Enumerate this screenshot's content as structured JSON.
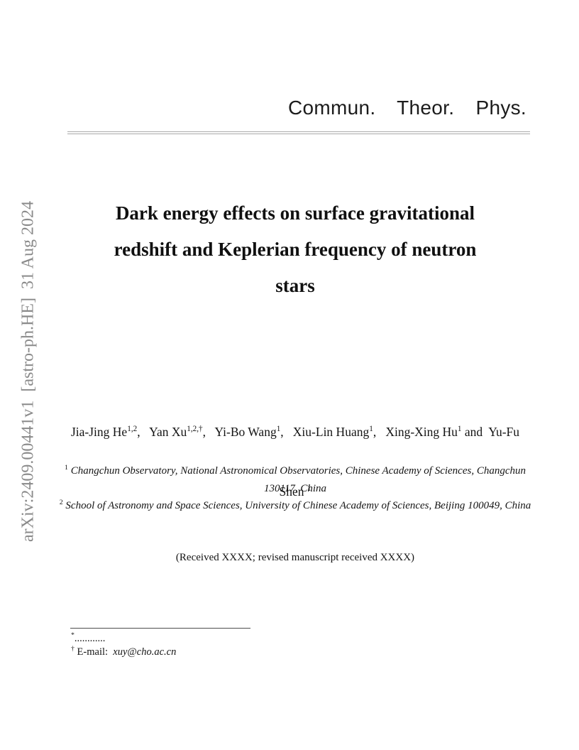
{
  "header": {
    "journal": "Commun.  Theor.  Phys."
  },
  "arxiv_stamp": {
    "text": "arXiv:2409.00441v1  [astro-ph.HE]  31 Aug 2024"
  },
  "title": {
    "lines": [
      "Dark energy effects on surface gravitational",
      "redshift and Keplerian frequency of neutron",
      "stars"
    ]
  },
  "authors": {
    "line1": [
      {
        "name": "Jia-Jing He",
        "sup": "1,2",
        "after": ",   "
      },
      {
        "name": "Yan Xu",
        "sup": "1,2,†",
        "after": ",   "
      },
      {
        "name": "Yi-Bo Wang",
        "sup": "1",
        "after": ",   "
      },
      {
        "name": "Xiu-Lin Huang",
        "sup": "1",
        "after": ",   "
      },
      {
        "name": "Xing-Xing Hu",
        "sup": "1",
        "after": " and  "
      },
      {
        "name": "Yu-Fu",
        "sup": "",
        "after": ""
      }
    ],
    "line2": [
      {
        "name": "Shen ",
        "sup": "1",
        "after": ""
      }
    ]
  },
  "affiliations": [
    {
      "sup": "1",
      "text": " Changchun Observatory, National Astronomical Observatories, Chinese Academy of Sciences, Changchun 130117, China"
    },
    {
      "sup": "2",
      "text": " School of Astronomy and Space Sciences, University of Chinese Academy of Sciences, Beijing 100049, China"
    }
  ],
  "received": "(Received XXXX; revised manuscript received XXXX)",
  "footnotes": [
    {
      "sup": "*",
      "text": "............"
    },
    {
      "sup": "†",
      "label": " E-mail:  ",
      "email": "xuy@cho.ac.cn"
    }
  ],
  "colors": {
    "stamp_gray": "#8a8a8a",
    "header_rule_gray": "#a9a9a9",
    "footnote_rule": "#4d4d4d",
    "text": "#141414"
  }
}
